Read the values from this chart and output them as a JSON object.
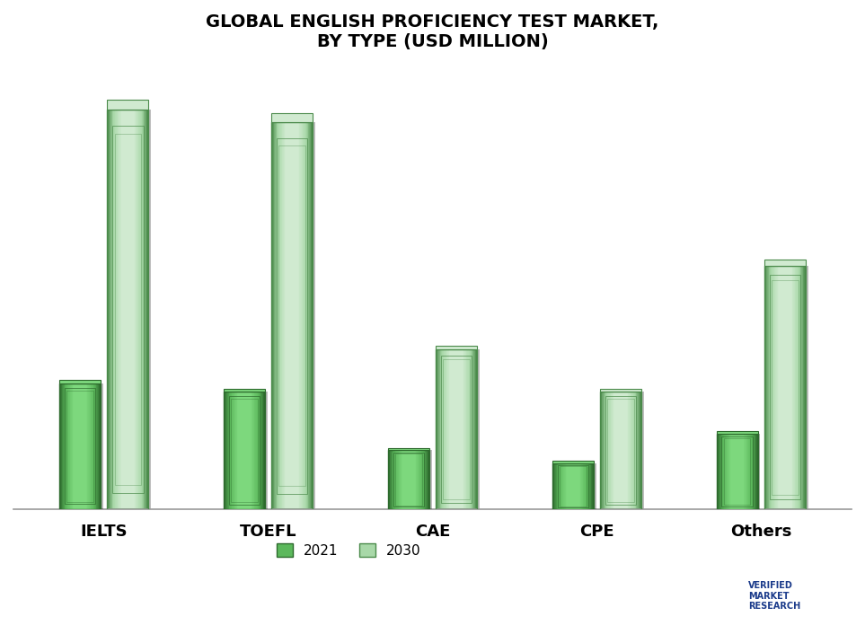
{
  "title": "GLOBAL ENGLISH PROFICIENCY TEST MARKET,\nBY TYPE (USD MILLION)",
  "categories": [
    "IELTS",
    "TOEFL",
    "CAE",
    "CPE",
    "Others"
  ],
  "values_2021": [
    3.0,
    2.8,
    1.4,
    1.1,
    1.8
  ],
  "values_2030": [
    9.5,
    9.2,
    3.8,
    2.8,
    5.8
  ],
  "color_2021_center": "#5cb85c",
  "color_2021_edge": "#2d6a2d",
  "color_2021_light": "#7dd87d",
  "color_2030_center": "#a8d8a8",
  "color_2030_edge": "#4a8a4a",
  "color_2030_light": "#d0ead0",
  "legend_labels": [
    "2021",
    "2030"
  ],
  "bar_width": 0.25,
  "background_color": "#ffffff",
  "title_fontsize": 14,
  "xlabel_fontsize": 13,
  "legend_fontsize": 11
}
